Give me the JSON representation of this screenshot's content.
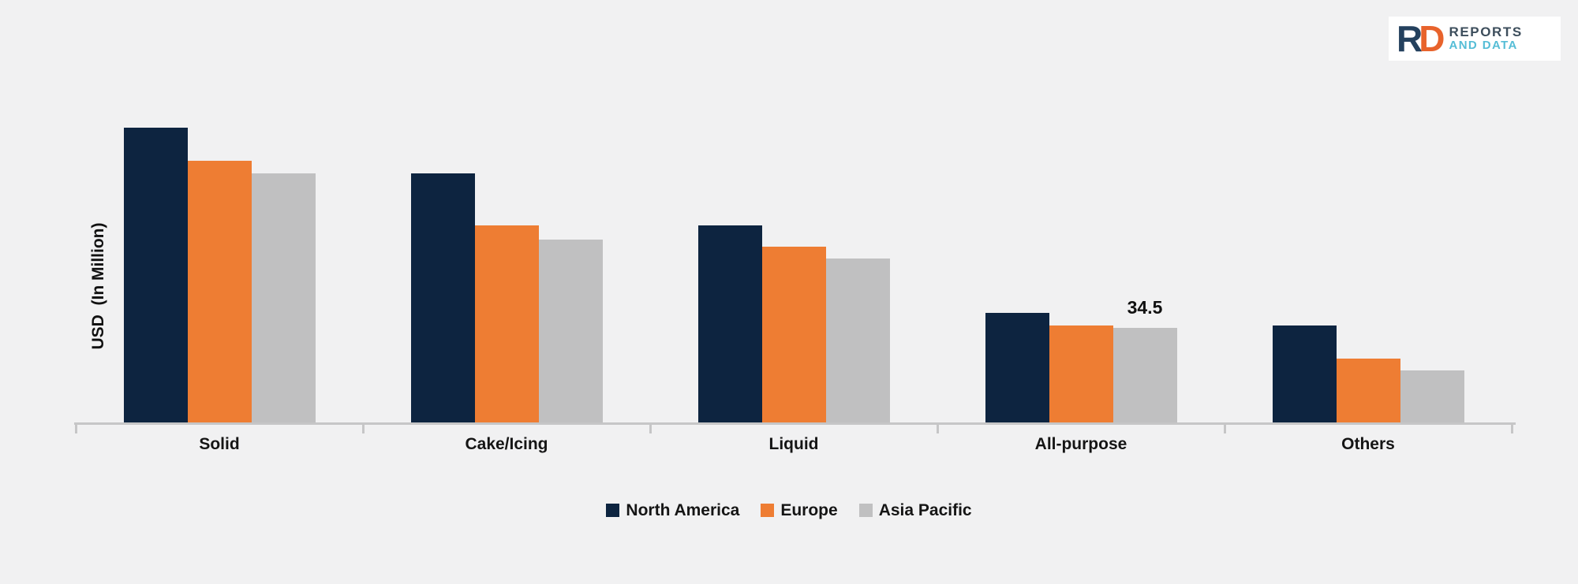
{
  "page": {
    "background": "#f1f1f2",
    "axis_color": "#c6c6c7"
  },
  "logo": {
    "monogram": {
      "r": "R",
      "d": "D"
    },
    "line1": "REPORTS",
    "line2": "AND DATA",
    "colors": {
      "r": "#24415e",
      "d": "#e8632c",
      "line1": "#3d4e5c",
      "line2": "#55bdd6",
      "box": "#ffffff"
    }
  },
  "chart_data": {
    "type": "bar",
    "title": "",
    "xlabel": "",
    "ylabel": "USD  (In Million)",
    "categories": [
      "Solid",
      "Cake/Icing",
      "Liquid",
      "All-purpose",
      "Others"
    ],
    "series": [
      {
        "name": "North America",
        "color": "#0d2440",
        "values": [
          107,
          90.5,
          71.5,
          40,
          35.5
        ]
      },
      {
        "name": "Europe",
        "color": "#ee7d33",
        "values": [
          95,
          71.5,
          64,
          35.5,
          23.5
        ]
      },
      {
        "name": "Asia Pacific",
        "color": "#c0c0c1",
        "values": [
          90.5,
          66.5,
          59.5,
          34.5,
          19
        ]
      }
    ],
    "data_labels": [
      {
        "category": "All-purpose",
        "series": "Asia Pacific",
        "text": "34.5"
      }
    ],
    "ylim": [
      0,
      125
    ],
    "y_axis_ticks_visible": false,
    "grid": false,
    "legend_position": "bottom"
  }
}
